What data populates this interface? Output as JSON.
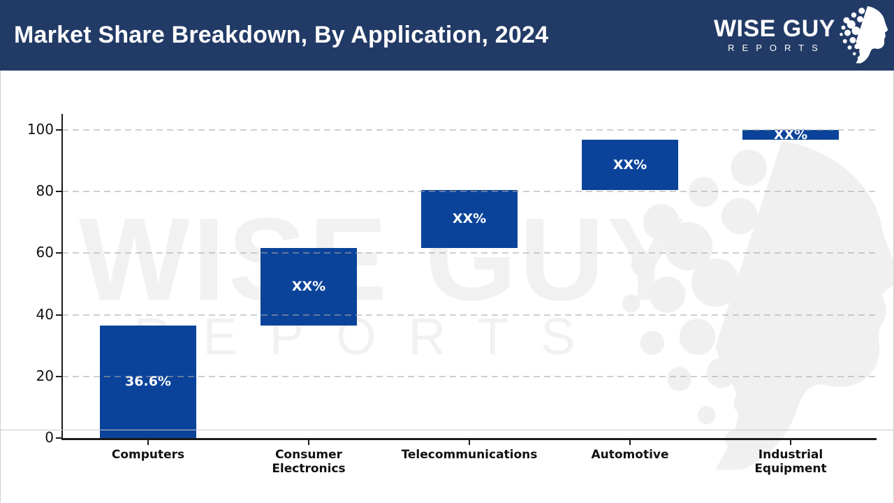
{
  "header": {
    "title": "Market Share Breakdown, By Application, 2024",
    "logo": {
      "line1": "WISE GUY",
      "line2": "REPORTS"
    }
  },
  "watermark": {
    "line1": "WISE GUY",
    "line2": "REPORTS"
  },
  "chart_data": {
    "type": "bar",
    "subtype": "waterfall",
    "title": "Market Share Breakdown, By Application, 2024",
    "categories": [
      "Computers",
      "Consumer Electronics",
      "Telecommunications",
      "Automotive",
      "Industrial Equipment"
    ],
    "tick_labels": [
      "Computers",
      "Consumer\nElectronics",
      "Telecommunications",
      "Automotive",
      "Industrial\nEquipment"
    ],
    "segments": [
      {
        "category": "Computers",
        "start": 0,
        "end": 36.6,
        "label": "36.6%"
      },
      {
        "category": "Consumer Electronics",
        "start": 36.6,
        "end": 61.6,
        "label": "XX%"
      },
      {
        "category": "Telecommunications",
        "start": 61.6,
        "end": 80.6,
        "label": "XX%"
      },
      {
        "category": "Automotive",
        "start": 80.6,
        "end": 96.9,
        "label": "XX%"
      },
      {
        "category": "Industrial Equipment",
        "start": 96.9,
        "end": 100,
        "label": "XX%"
      }
    ],
    "yticks": [
      0,
      20,
      40,
      60,
      80,
      100
    ],
    "ylim": [
      0,
      105
    ],
    "xlabel": "",
    "ylabel": "",
    "grid": "dashed-horizontal",
    "legend": "none",
    "bar_color": "#0a4399",
    "bar_label_color": "#ffffff"
  },
  "colors": {
    "header_bg": "#223a66",
    "bar": "#0a4399",
    "watermark": "#f1f1f1",
    "axis": "#1a1a1a"
  }
}
